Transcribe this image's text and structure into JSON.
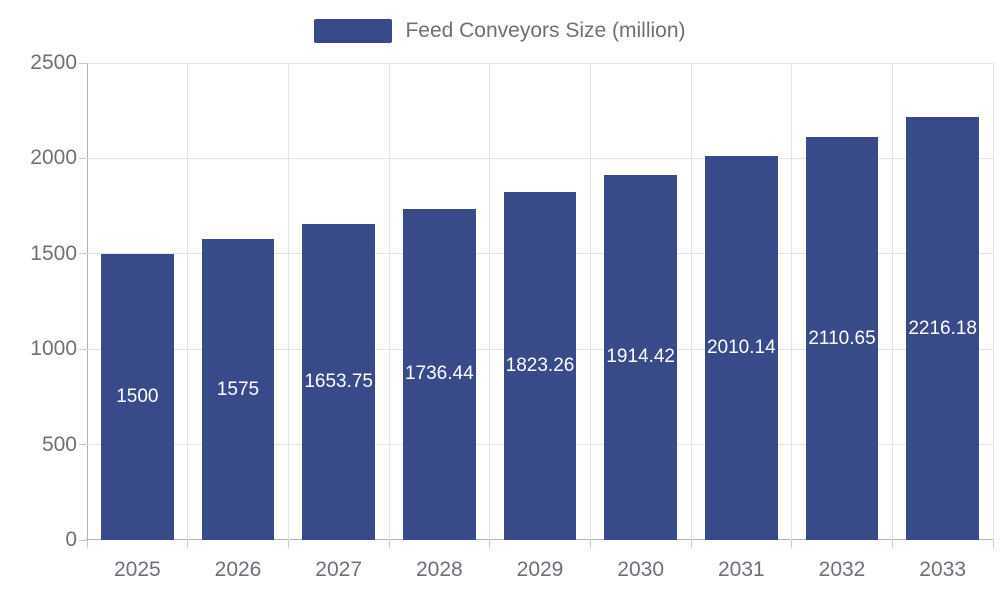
{
  "legend": {
    "label": "Feed Conveyors Size (million)"
  },
  "chart_data": {
    "type": "bar",
    "title": "Feed Conveyors Size (million)",
    "series_name": "Feed Conveyors Size (million)",
    "categories": [
      "2025",
      "2026",
      "2027",
      "2028",
      "2029",
      "2030",
      "2031",
      "2032",
      "2033"
    ],
    "values": [
      1500,
      1575,
      1653.75,
      1736.44,
      1823.26,
      1914.42,
      2010.14,
      2110.65,
      2216.18
    ],
    "value_labels": [
      "1500",
      "1575",
      "1653.75",
      "1736.44",
      "1823.26",
      "1914.42",
      "2010.14",
      "2110.65",
      "2216.18"
    ],
    "xlabel": "",
    "ylabel": "",
    "ylim": [
      0,
      2500
    ],
    "y_ticks": [
      0,
      500,
      1000,
      1500,
      2000,
      2500
    ],
    "grid": true,
    "legend_position": "top-center",
    "bar_label_position": "inside-center",
    "colors": {
      "bar": "#384A8A",
      "bar_label": "#FFFFFF",
      "axis_text": "#6E7079",
      "axis_line": "#B1B3B9",
      "grid_line": "#E2E4EA",
      "tick_line": "#C4C9D6",
      "background": "#FFFFFF"
    }
  }
}
